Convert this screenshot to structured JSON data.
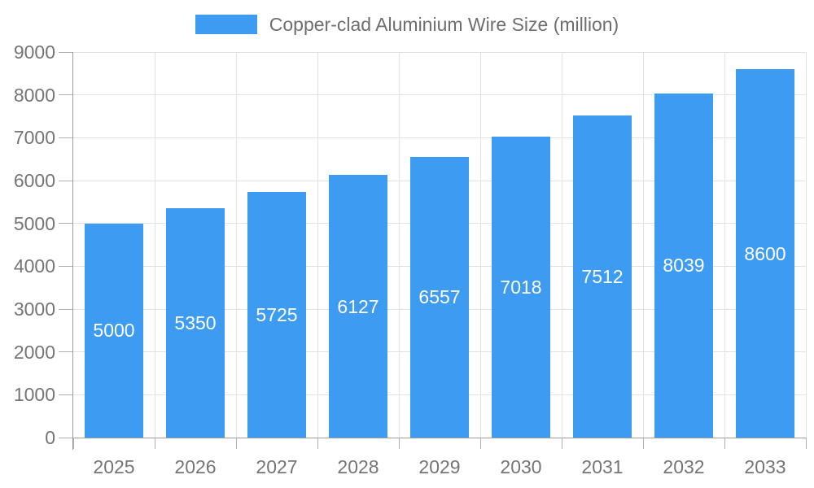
{
  "chart_data": {
    "type": "bar",
    "title": "Copper-clad Aluminium Wire Size (million)",
    "legend": {
      "position": "top",
      "label": "Copper-clad Aluminium Wire Size (million)"
    },
    "categories": [
      "2025",
      "2026",
      "2027",
      "2028",
      "2029",
      "2030",
      "2031",
      "2032",
      "2033"
    ],
    "series": [
      {
        "name": "Copper-clad Aluminium Wire Size (million)",
        "values": [
          5000,
          5350,
          5725,
          6127,
          6557,
          7018,
          7512,
          8039,
          8600
        ]
      }
    ],
    "data_labels_shown": true,
    "xlabel": "",
    "ylabel": "",
    "ylim": [
      0,
      9000
    ],
    "y_tick_step": 1000,
    "y_tick_labels": [
      "0",
      "1000",
      "2000",
      "3000",
      "4000",
      "5000",
      "6000",
      "7000",
      "8000",
      "9000"
    ],
    "grid": true,
    "colors": {
      "bar_fill": "#3D9BF1",
      "bar_value_label": "#ffffff",
      "gridline": "#e2e2e2",
      "axis_line": "#9b9b9b",
      "tick_mark": "#b0b0b0",
      "axis_text": "#757575",
      "legend_text": "#6e6e6e"
    }
  }
}
